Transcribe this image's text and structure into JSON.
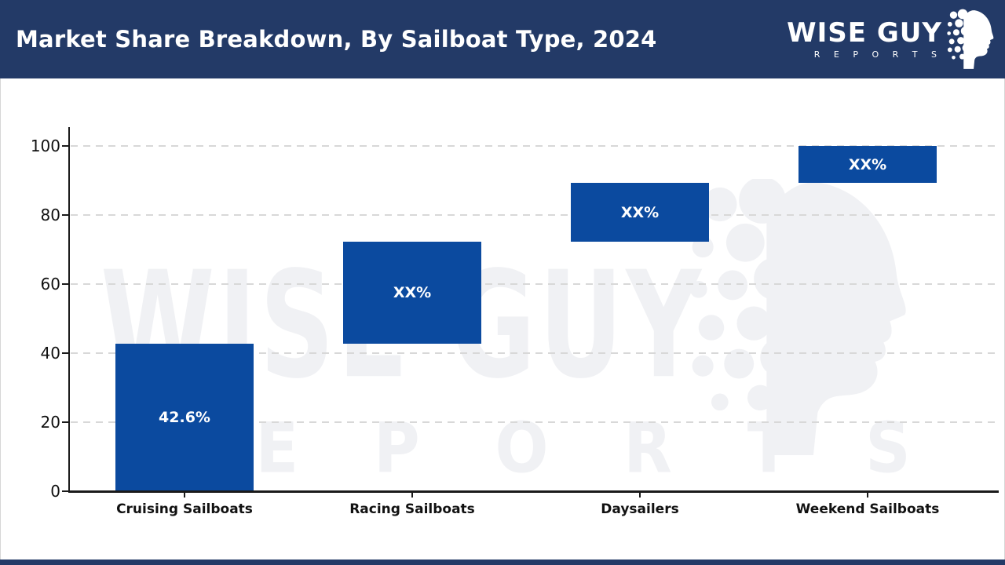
{
  "header": {
    "title": "Market Share Breakdown, By Sailboat Type, 2024",
    "logo_line1": "WISE GUY",
    "logo_line2": "R E P O R T S"
  },
  "watermark": {
    "line1": "WISE GUY",
    "line2": "R E P O R T S"
  },
  "colors": {
    "header_bg": "#233A67",
    "footer_bg": "#233A67",
    "bar": "#0B4A9F",
    "bar_label": "#FFFFFF",
    "grid": "#D8D8D8",
    "axis": "#1A1A1A",
    "tick_label": "#111111",
    "title_text": "#FFFFFF",
    "watermark": "#F0F1F4"
  },
  "chart_data": {
    "type": "bar",
    "subtype": "waterfall",
    "title": "Market Share Breakdown, By Sailboat Type, 2024",
    "categories": [
      "Cruising Sailboats",
      "Racing Sailboats",
      "Daysailers",
      "Weekend Sailboats"
    ],
    "bars": [
      {
        "category": "Cruising Sailboats",
        "start": 0,
        "end": 42.6,
        "value": 42.6,
        "label": "42.6%"
      },
      {
        "category": "Racing Sailboats",
        "start": 42.6,
        "end": 72.2,
        "value": 29.6,
        "label": "XX%"
      },
      {
        "category": "Daysailers",
        "start": 72.2,
        "end": 89.3,
        "value": 17.1,
        "label": "XX%"
      },
      {
        "category": "Weekend Sailboats",
        "start": 89.3,
        "end": 100,
        "value": 10.7,
        "label": "XX%"
      }
    ],
    "yticks": [
      0,
      20,
      40,
      60,
      80,
      100
    ],
    "ylim": [
      0,
      105.7
    ],
    "xlabel": "",
    "ylabel": "",
    "grid": "horizontal-dashed",
    "legend": "none"
  }
}
